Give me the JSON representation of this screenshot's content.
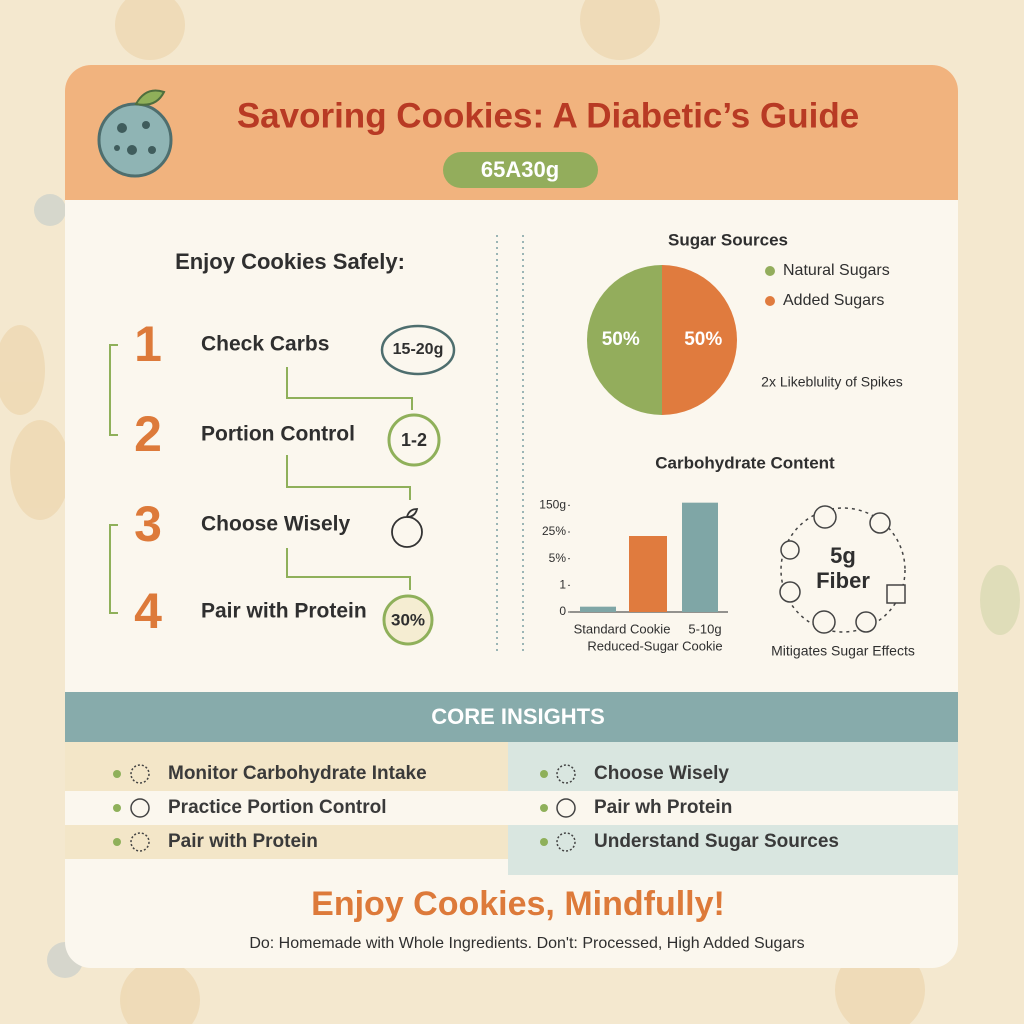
{
  "header": {
    "title": "Savoring Cookies: A Diabetic’s Guide",
    "badge": "65A30g"
  },
  "steps": {
    "heading": "Enjoy Cookies Safely:",
    "items": [
      {
        "number": 1,
        "label": "Check Carbs",
        "badge": "15-20g"
      },
      {
        "number": 2,
        "label": "Portion Control",
        "badge": "1-2"
      },
      {
        "number": 3,
        "label": "Choose Wisely"
      },
      {
        "number": 4,
        "label": "Pair with Protein",
        "badge": "30%"
      }
    ]
  },
  "sugar_chart": {
    "type": "pie",
    "title": "Sugar Sources",
    "categories": [
      "Natural Sugars",
      "Added Sugars"
    ],
    "values": [
      50,
      50
    ],
    "value_labels": [
      "50%",
      "50%"
    ],
    "colors": [
      "#93ad5c",
      "#e07b3e"
    ],
    "annotation": "2x Likeblulity of Spikes"
  },
  "carb_chart": {
    "type": "bar",
    "title": "Carbohydrate Content",
    "categories": [
      "Standard Cookie",
      "Reduced-Sugar Cookie",
      "5-10g"
    ],
    "values": [
      0.2,
      2.85,
      4.1
    ],
    "colors": [
      "#7fa6a6",
      "#e07b3e",
      "#7fa6a6"
    ],
    "ylim": [
      0,
      4.2
    ],
    "yticks": [
      0,
      1,
      {
        "value": 2,
        "label": "5%"
      },
      {
        "value": 3,
        "label": "25%"
      },
      {
        "value": 4,
        "label": "150g"
      }
    ]
  },
  "fiber": {
    "value": "5g",
    "label": "Fiber",
    "caption": "Mitigates Sugar Effects"
  },
  "insights": {
    "title": "CORE INSIGHTS",
    "left": [
      "Monitor Carbohydrate Intake",
      "Practice Portion Control",
      "Pair with Protein"
    ],
    "right": [
      "Choose Wisely",
      "Pair wh Protein",
      "Understand Sugar Sources"
    ]
  },
  "footer": {
    "title": "Enjoy Cookies, Mindfully!",
    "note": "Do: Homemade with Whole Ingredients.  Don't: Processed, High Added Sugars"
  }
}
